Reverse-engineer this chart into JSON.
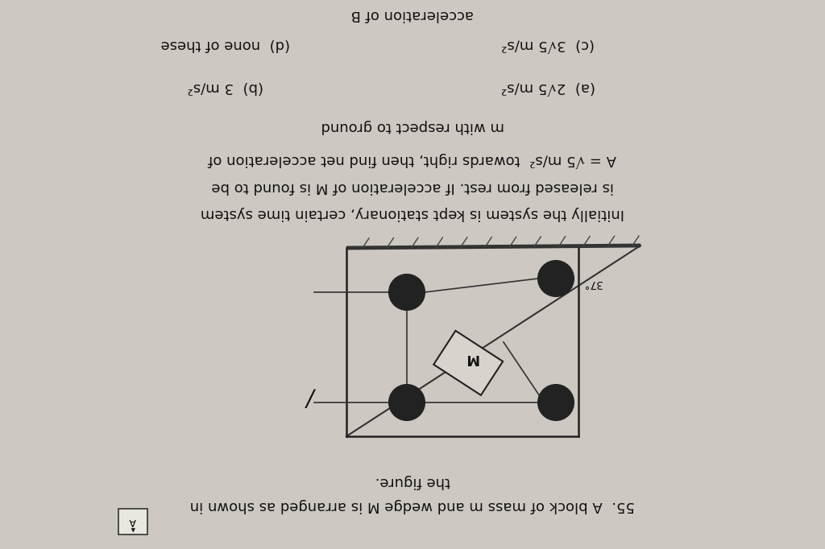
{
  "bg_color": "#cdc8c2",
  "text_color": "#111111",
  "fig_width": 10.24,
  "fig_height": 6.82,
  "angle_label": "37°",
  "wedge_label": "M",
  "rope_label": "/",
  "line1_top": "acceleration of B",
  "line2": "(d)  none of these",
  "line3": "(c)  3√5 m/s²",
  "line4": "(b)  3 m/s²",
  "line5": "(a)  2√5 m/s²",
  "line6": "m with respect to ground",
  "line7a": "A = √5 m/s²  towards right, then find net acceleration of",
  "line8": "is released from rest. If acceleration of M is found to be",
  "line9": "Initially the system is kept stationary, certain time system",
  "line10": "the figure.",
  "line11": "55.  A block of mass m and wedge M is arranged as shown in",
  "line12": "A"
}
